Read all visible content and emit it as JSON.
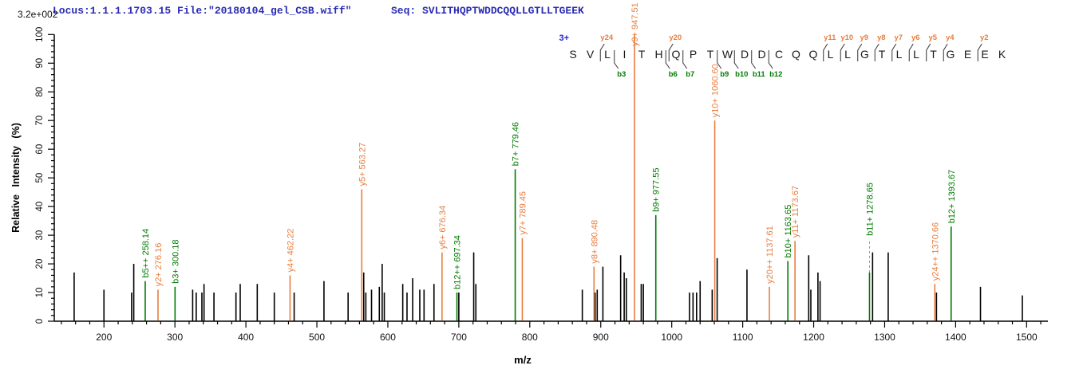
{
  "header": {
    "locus": "Locus:1.1.1.1703.15 File:\"20180104_gel_CSB.wiff\"",
    "seq": "Seq: SVLITHQPTWDDCQQLLGTLLTGEEK"
  },
  "chart_data": {
    "type": "bar",
    "subtype": "ms2-stick-spectrum",
    "title": "",
    "xlabel": "m/z",
    "ylabel": "Relative Intensity (%)",
    "max_intensity_label": "3.2e+002",
    "xlim": [
      130,
      1530
    ],
    "ylim": [
      0,
      100
    ],
    "x_major_ticks": [
      200,
      300,
      400,
      500,
      600,
      700,
      800,
      900,
      1000,
      1100,
      1200,
      1300,
      1400,
      1500
    ],
    "x_minor_step": 20,
    "y_major_step": 10,
    "y_minor_step": 2,
    "grid": false,
    "legend": "none",
    "colors": {
      "b_ion": "#007b00",
      "y_ion": "#e87e3e",
      "peak": "#000000",
      "axis": "#000000",
      "header_text": "#2b2bb5",
      "charge_text": "#1f1fcc",
      "dash_leader": "#999999"
    },
    "precursor_charge": "3+",
    "peptide": {
      "sequence": "SVLITHQPTWDDCQQLLGTLLTGEEK",
      "y_marks": [
        {
          "label": "y24",
          "residue": 3
        },
        {
          "label": "y20",
          "residue": 7
        },
        {
          "label": "y11",
          "residue": 16
        },
        {
          "label": "y10",
          "residue": 17
        },
        {
          "label": "y9",
          "residue": 18
        },
        {
          "label": "y8",
          "residue": 19
        },
        {
          "label": "y7",
          "residue": 20
        },
        {
          "label": "y6",
          "residue": 21
        },
        {
          "label": "y5",
          "residue": 22
        },
        {
          "label": "y4",
          "residue": 23
        },
        {
          "label": "y2",
          "residue": 25
        }
      ],
      "b_marks": [
        {
          "label": "b3",
          "after_residue": 3
        },
        {
          "label": "b6",
          "after_residue": 6
        },
        {
          "label": "b7",
          "after_residue": 7
        },
        {
          "label": "b9",
          "after_residue": 9
        },
        {
          "label": "b10",
          "after_residue": 10
        },
        {
          "label": "b11",
          "after_residue": 11
        },
        {
          "label": "b12",
          "after_residue": 12
        }
      ]
    },
    "labeled_peaks": [
      {
        "ion": "b5++",
        "mz": 258.14,
        "intensity": 14,
        "series": "b"
      },
      {
        "ion": "y2+",
        "mz": 276.16,
        "intensity": 11,
        "series": "y"
      },
      {
        "ion": "b3+",
        "mz": 300.18,
        "intensity": 12,
        "series": "b"
      },
      {
        "ion": "y4+",
        "mz": 462.22,
        "intensity": 16,
        "series": "y"
      },
      {
        "ion": "y5+",
        "mz": 563.27,
        "intensity": 46,
        "series": "y"
      },
      {
        "ion": "y6+",
        "mz": 676.34,
        "intensity": 24,
        "series": "y"
      },
      {
        "ion": "b12++",
        "mz": 697.34,
        "intensity": 10,
        "series": "b"
      },
      {
        "ion": "b7+",
        "mz": 779.46,
        "intensity": 53,
        "series": "b"
      },
      {
        "ion": "y7+",
        "mz": 789.45,
        "intensity": 29,
        "series": "y"
      },
      {
        "ion": "y8+",
        "mz": 890.48,
        "intensity": 19,
        "series": "y"
      },
      {
        "ion": "y9+",
        "mz": 947.51,
        "intensity": 100,
        "series": "y"
      },
      {
        "ion": "b9+",
        "mz": 977.55,
        "intensity": 37,
        "series": "b"
      },
      {
        "ion": "y10+",
        "mz": 1060.6,
        "intensity": 70,
        "series": "y"
      },
      {
        "ion": "y20++",
        "mz": 1137.61,
        "intensity": 12,
        "series": "y"
      },
      {
        "ion": "b10+",
        "mz": 1163.65,
        "intensity": 21,
        "series": "b"
      },
      {
        "ion": "y11+",
        "mz": 1173.67,
        "intensity": 28,
        "series": "y"
      },
      {
        "ion": "b11+",
        "mz": 1278.65,
        "intensity": 17,
        "series": "b",
        "dashed_leader": true
      },
      {
        "ion": "y24++",
        "mz": 1370.66,
        "intensity": 13,
        "series": "y"
      },
      {
        "ion": "b12+",
        "mz": 1393.67,
        "intensity": 33,
        "series": "b"
      }
    ],
    "unlabeled_peaks": [
      [
        158,
        17
      ],
      [
        200,
        11
      ],
      [
        239,
        10
      ],
      [
        242,
        20
      ],
      [
        325,
        11
      ],
      [
        330,
        10
      ],
      [
        338,
        10
      ],
      [
        341,
        13
      ],
      [
        355,
        10
      ],
      [
        386,
        10
      ],
      [
        392,
        13
      ],
      [
        416,
        13
      ],
      [
        440,
        10
      ],
      [
        468,
        10
      ],
      [
        510,
        14
      ],
      [
        544,
        10
      ],
      [
        566,
        17
      ],
      [
        569,
        10
      ],
      [
        577,
        11
      ],
      [
        588,
        12
      ],
      [
        592,
        20
      ],
      [
        595,
        10
      ],
      [
        621,
        13
      ],
      [
        627,
        10
      ],
      [
        635,
        15
      ],
      [
        645,
        11
      ],
      [
        651,
        11
      ],
      [
        665,
        13
      ],
      [
        700,
        10
      ],
      [
        721,
        24
      ],
      [
        724,
        13
      ],
      [
        874,
        11
      ],
      [
        892,
        10
      ],
      [
        895,
        11
      ],
      [
        903,
        19
      ],
      [
        928,
        23
      ],
      [
        933,
        17
      ],
      [
        936,
        15
      ],
      [
        957,
        13
      ],
      [
        960,
        13
      ],
      [
        1025,
        10
      ],
      [
        1030,
        10
      ],
      [
        1035,
        10
      ],
      [
        1040,
        14
      ],
      [
        1057,
        11
      ],
      [
        1064,
        22
      ],
      [
        1106,
        18
      ],
      [
        1193,
        23
      ],
      [
        1196,
        11
      ],
      [
        1206,
        17
      ],
      [
        1209,
        14
      ],
      [
        1283,
        24
      ],
      [
        1305,
        24
      ],
      [
        1373,
        10
      ],
      [
        1435,
        12
      ],
      [
        1494,
        9
      ]
    ]
  }
}
